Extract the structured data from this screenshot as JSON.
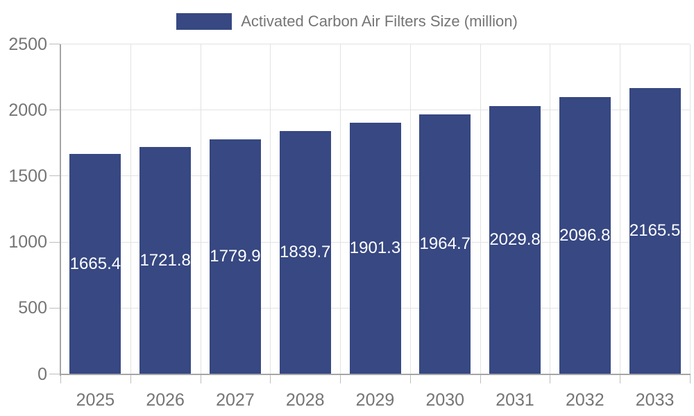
{
  "chart_data": {
    "type": "bar",
    "title": "",
    "legend": [
      "Activated Carbon Air Filters Size (million)"
    ],
    "legend_position": "top-center",
    "categories": [
      "2025",
      "2026",
      "2027",
      "2028",
      "2029",
      "2030",
      "2031",
      "2032",
      "2033"
    ],
    "values": [
      1665.4,
      1721.8,
      1779.9,
      1839.7,
      1901.3,
      1964.7,
      2029.8,
      2096.8,
      2165.5
    ],
    "xlabel": "",
    "ylabel": "",
    "ylim": [
      0,
      2500
    ],
    "yticks": [
      0,
      500,
      1000,
      1500,
      2000,
      2500
    ],
    "grid": true,
    "bar_color": "#374882",
    "value_label_color": "#ffffff",
    "tick_text_color": "#757575",
    "axis_color": "#a5a5a5",
    "grid_color": "#e2e2e2",
    "background_color": "#ffffff"
  }
}
